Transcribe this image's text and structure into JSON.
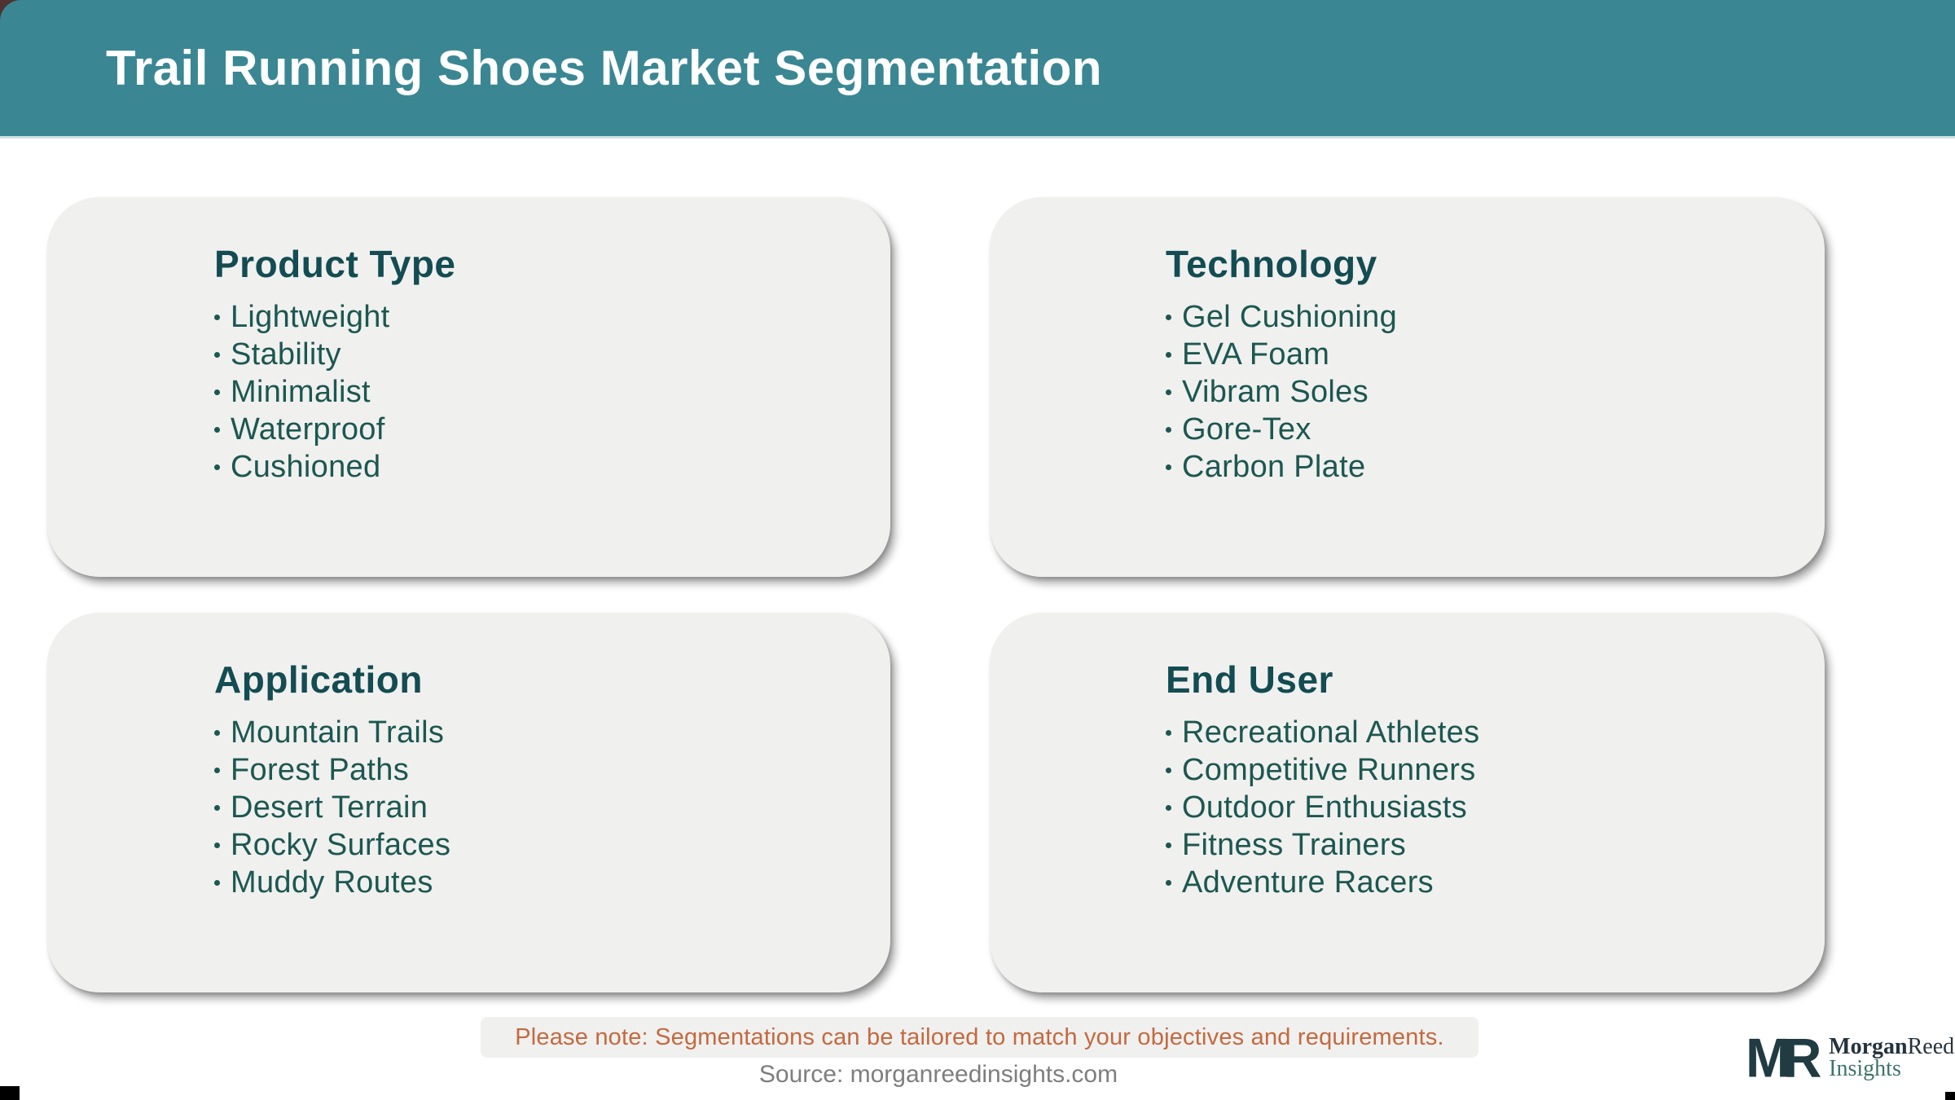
{
  "header": {
    "title": "Trail Running Shoes Market Segmentation"
  },
  "cards": [
    {
      "title": "Product Type",
      "items": [
        "Lightweight",
        "Stability",
        "Minimalist",
        "Waterproof",
        "Cushioned"
      ]
    },
    {
      "title": "Technology",
      "items": [
        "Gel Cushioning",
        "EVA Foam",
        "Vibram Soles",
        "Gore-Tex",
        "Carbon Plate"
      ]
    },
    {
      "title": "Application",
      "items": [
        "Mountain Trails",
        "Forest Paths",
        "Desert Terrain",
        "Rocky Surfaces",
        "Muddy Routes"
      ]
    },
    {
      "title": "End User",
      "items": [
        "Recreational Athletes",
        "Competitive Runners",
        "Outdoor Enthusiasts",
        "Fitness Trainers",
        "Adventure Racers"
      ]
    }
  ],
  "footer": {
    "note": "Please note: Segmentations can be tailored to match your objectives and requirements.",
    "source": "Source: morganreedinsights.com"
  },
  "logo": {
    "monogram": "MR",
    "name_bold": "Morgan",
    "name_light": "Reed",
    "subtitle": "Insights"
  },
  "colors": {
    "header_bg": "#3A8793",
    "card_bg": "#F0F0EF",
    "heading_text": "#134C52",
    "item_text": "#1C5750",
    "note_text": "#C4693F",
    "source_text": "#7E7E7E",
    "logo_navy": "#24333E",
    "logo_teal": "#3E7468"
  }
}
